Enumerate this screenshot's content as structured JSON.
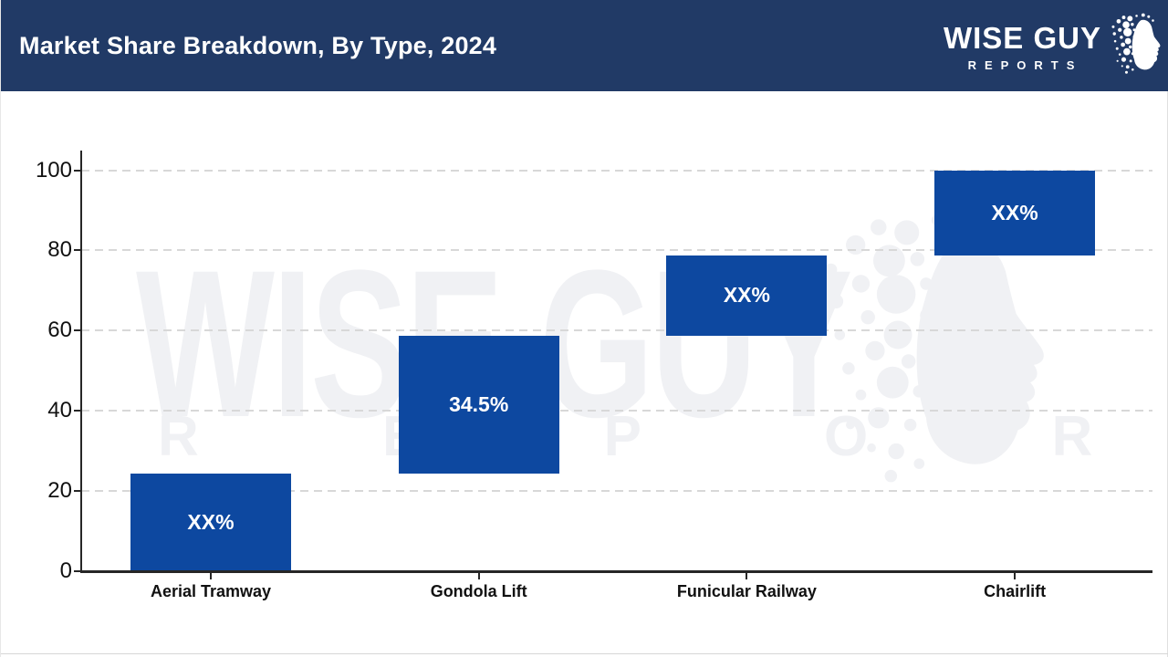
{
  "header": {
    "title": "Market Share Breakdown, By Type, 2024",
    "logo": {
      "line1": "WISE GUY",
      "line2": "REPORTS"
    }
  },
  "watermark": {
    "line1": "WISE GUY",
    "line2": "R E P O R T S"
  },
  "colors": {
    "header_bg": "#213a66",
    "bar": "#0d48a0",
    "grid": "#d8d8d8",
    "axis": "#262626",
    "watermark": "#f0f1f4",
    "bar_label_text": "#ffffff",
    "tick_text": "#111111"
  },
  "chart_data": {
    "type": "bar",
    "subtype": "waterfall",
    "title": "Market Share Breakdown, By Type, 2024",
    "categories": [
      "Aerial Tramway",
      "Gondola Lift",
      "Funicular Railway",
      "Chairlift"
    ],
    "bars": [
      {
        "label": "Aerial Tramway",
        "start": 0,
        "end": 24.3,
        "value_label": "XX%"
      },
      {
        "label": "Gondola Lift",
        "start": 24.3,
        "end": 58.8,
        "value_label": "34.5%"
      },
      {
        "label": "Funicular Railway",
        "start": 58.8,
        "end": 78.8,
        "value_label": "XX%"
      },
      {
        "label": "Chairlift",
        "start": 78.8,
        "end": 100,
        "value_label": "XX%"
      }
    ],
    "xlabel": "",
    "ylabel": "",
    "ylim": [
      0,
      105
    ],
    "yticks": [
      0,
      20,
      40,
      60,
      80,
      100
    ],
    "grid": "horizontal-dashed",
    "legend": "none"
  }
}
